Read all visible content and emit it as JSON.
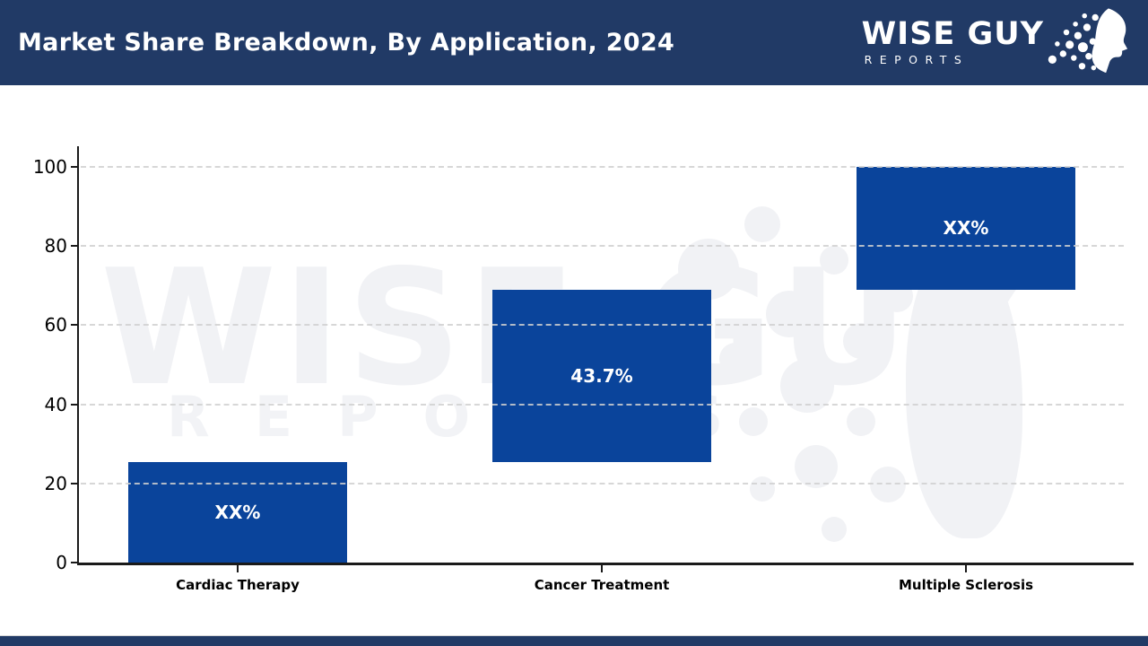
{
  "header": {
    "title": "Market Share Breakdown, By Application, 2024",
    "logo": {
      "line1": "WISE GUY",
      "line2": "REPORTS"
    }
  },
  "watermark": {
    "line1": "WISE GUY",
    "line2": "REPORTS"
  },
  "chart_data": {
    "type": "bar",
    "subtype": "floating-stacked-waterfall",
    "title": "Market Share Breakdown, By Application, 2024",
    "categories": [
      "Cardiac Therapy",
      "Cancer Treatment",
      "Multiple Sclerosis"
    ],
    "bars": [
      {
        "category": "Cardiac Therapy",
        "start": 0,
        "end": 25.3,
        "label": "XX%"
      },
      {
        "category": "Cancer Treatment",
        "start": 25.3,
        "end": 69.0,
        "label": "43.7%"
      },
      {
        "category": "Multiple Sclerosis",
        "start": 69.0,
        "end": 100.0,
        "label": "XX%"
      }
    ],
    "y_ticks": [
      0,
      20,
      40,
      60,
      80,
      100
    ],
    "ylim": [
      0,
      105
    ],
    "xlabel": "",
    "ylabel": "",
    "grid": "horizontal-dashed",
    "legend": "none",
    "bar_color": "#0a449b",
    "bar_label_color": "#ffffff"
  },
  "colors": {
    "header_bg": "#213a66",
    "footer_bg": "#213a66",
    "axis": "#1a1a1a",
    "gridline": "#d0d0d0",
    "watermark": "#f1f2f5"
  }
}
